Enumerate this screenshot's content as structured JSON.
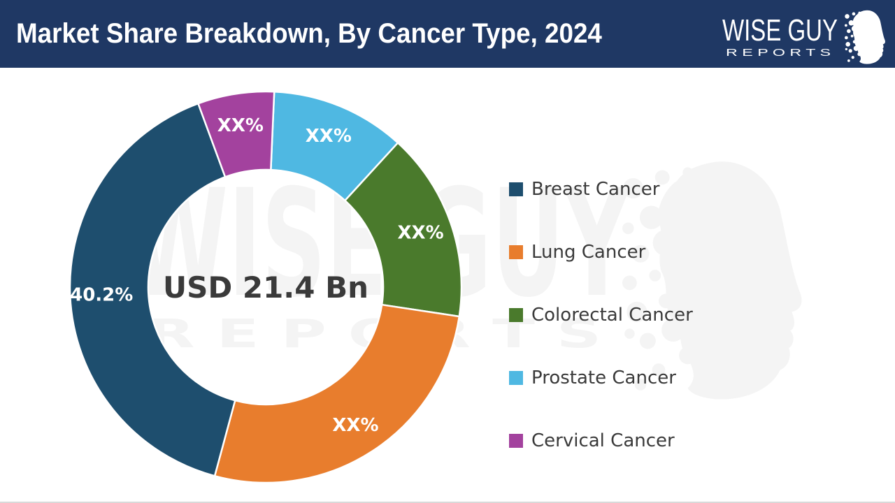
{
  "header": {
    "bg_color": "#1F3864",
    "title": "Market Share Breakdown, By Cancer Type, 2024",
    "logo": {
      "line1": "WISE GUY",
      "line2": "R E P O R T S"
    }
  },
  "watermark": {
    "line1": "WISE GUY",
    "line2": "R E P O R T S",
    "color": "#f4f4f4"
  },
  "chart_data": {
    "type": "donut",
    "title": "Market Share Breakdown, By Cancer Type, 2024",
    "center_label": "USD 21.4 Bn",
    "start_angle_deg": 2.5,
    "hole_ratio": 0.6,
    "legend_position": "right",
    "slices": [
      {
        "name": "Prostate Cancer",
        "label": "XX%",
        "value": 11.1,
        "color": "#4FB8E2"
      },
      {
        "name": "Colorectal Cancer",
        "label": "XX%",
        "value": 15.6,
        "color": "#4A7A2C"
      },
      {
        "name": "Lung Cancer",
        "label": "XX%",
        "value": 26.8,
        "color": "#E87D2D"
      },
      {
        "name": "Breast Cancer",
        "label": "40.2%",
        "value": 40.2,
        "color": "#1E4E6E"
      },
      {
        "name": "Cervical Cancer",
        "label": "XX%",
        "value": 6.3,
        "color": "#A3429E"
      }
    ],
    "legend_order": [
      3,
      2,
      1,
      0,
      4
    ]
  }
}
